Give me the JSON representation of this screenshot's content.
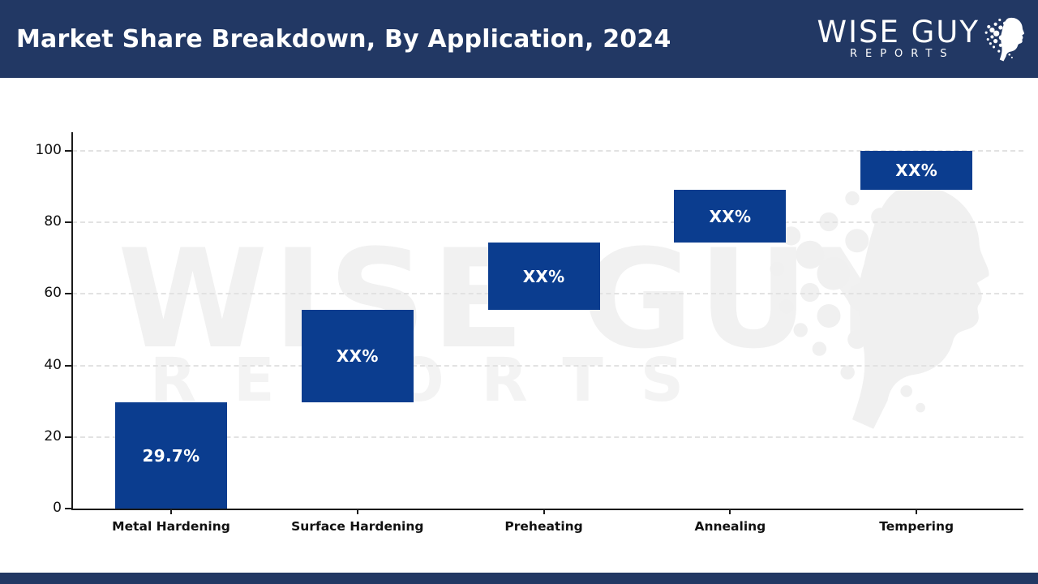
{
  "header": {
    "title": "Market Share Breakdown, By Application, 2024",
    "logo_line1": "WISE GUY",
    "logo_line2": "REPORTS"
  },
  "watermark": {
    "line1": "WISE GUY",
    "line2": "REPORTS"
  },
  "chart_data": {
    "type": "bar",
    "subtype": "floating-waterfall",
    "title": "Market Share Breakdown, By Application, 2024",
    "categories": [
      "Metal Hardening",
      "Surface Hardening",
      "Preheating",
      "Annealing",
      "Tempering"
    ],
    "bars": [
      {
        "category": "Metal Hardening",
        "start": 0,
        "end": 29.7,
        "label": "29.7%"
      },
      {
        "category": "Surface Hardening",
        "start": 29.7,
        "end": 55.6,
        "label": "XX%"
      },
      {
        "category": "Preheating",
        "start": 55.6,
        "end": 74.3,
        "label": "XX%"
      },
      {
        "category": "Annealing",
        "start": 74.3,
        "end": 89.1,
        "label": "XX%"
      },
      {
        "category": "Tempering",
        "start": 89.1,
        "end": 100,
        "label": "XX%"
      }
    ],
    "xlabel": "",
    "ylabel": "",
    "ylim": [
      0,
      105
    ],
    "yticks": [
      0,
      20,
      40,
      60,
      80,
      100
    ],
    "grid": "horizontal-dashed",
    "legend": "none"
  },
  "colors": {
    "header_bg": "#223864",
    "footer_bg": "#223864",
    "bar": "#0b3d8f",
    "bar_label": "#ffffff",
    "axis": "#1a1a1a",
    "grid": "#e2e2e2",
    "watermark": "#f1f1f1"
  }
}
